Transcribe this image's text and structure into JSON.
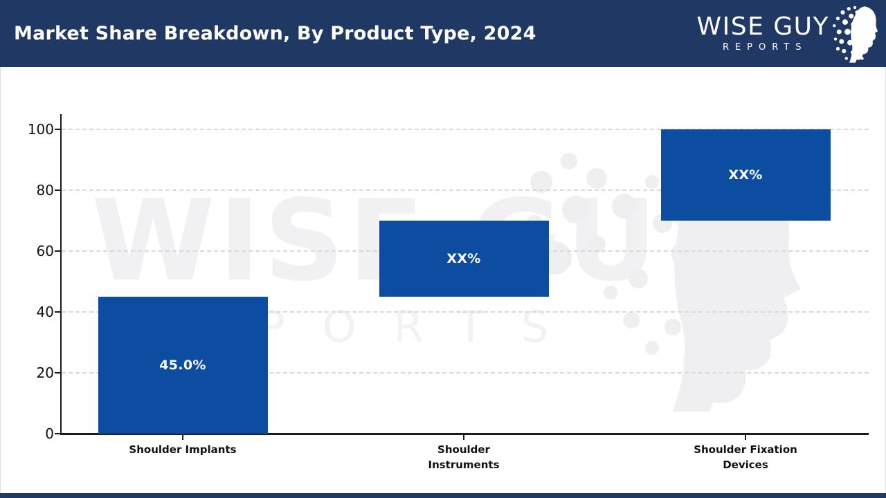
{
  "header": {
    "title": "Market Share Breakdown, By Product Type, 2024",
    "logo": {
      "wordmark": "WISE GUY",
      "subtitle": "REPORTS"
    }
  },
  "watermark": {
    "wordmark": "WISE GUY",
    "subtitle": "REPORTS"
  },
  "chart_data": {
    "type": "bar",
    "subtype": "floating-segment-waterfall",
    "title": "Market Share Breakdown, By Product Type, 2024",
    "categories": [
      "Shoulder Implants",
      "Shoulder\nInstruments",
      "Shoulder Fixation\nDevices"
    ],
    "bars": [
      {
        "category": "Shoulder Implants",
        "label": "45.0%",
        "start": 0,
        "end": 45
      },
      {
        "category": "Shoulder Instruments",
        "label": "XX%",
        "start": 45,
        "end": 70
      },
      {
        "category": "Shoulder Fixation Devices",
        "label": "XX%",
        "start": 70,
        "end": 100
      }
    ],
    "values": [
      45,
      25,
      30
    ],
    "yticks": [
      0,
      20,
      40,
      60,
      80,
      100
    ],
    "ylim": [
      0,
      105
    ],
    "xlabel": "",
    "ylabel": "",
    "legend": null,
    "grid": "horizontal-dashed",
    "bar_color": "#0c4da2",
    "bar_label_color": "#ffffff"
  },
  "colors": {
    "header_bg": "#1f3864",
    "footer_bg": "#1f3864",
    "axis": "#1a1a1a",
    "gridline": "#d9d9d9",
    "watermark": "#f1f1f4",
    "tick_label": "#111111"
  }
}
